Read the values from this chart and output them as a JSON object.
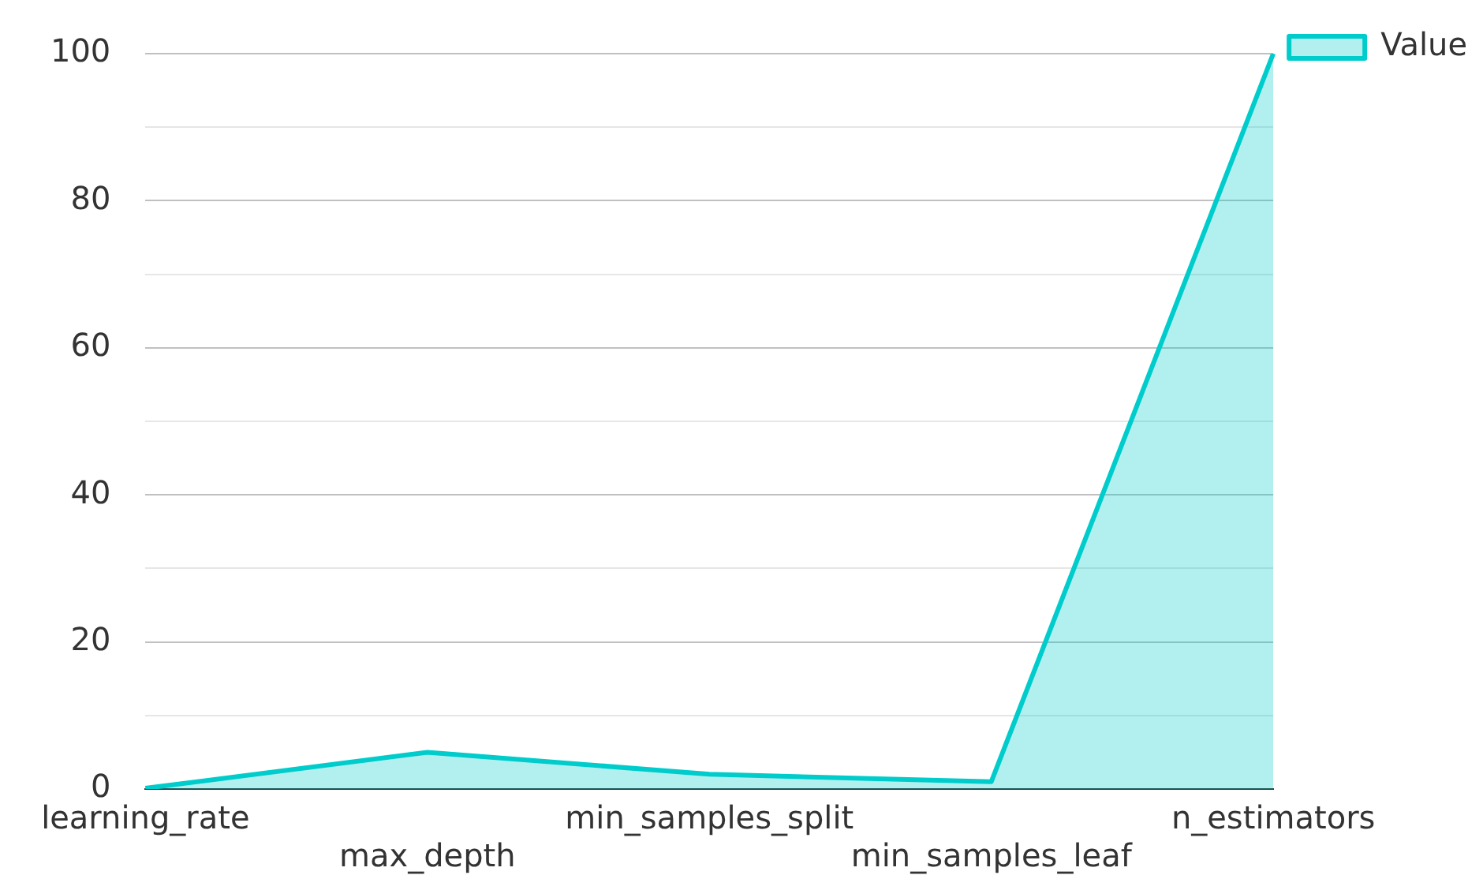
{
  "chart_data": {
    "type": "area",
    "categories": [
      "learning_rate",
      "max_depth",
      "min_samples_split",
      "min_samples_leaf",
      "n_estimators"
    ],
    "series": [
      {
        "name": "Value",
        "color": "#00cccc",
        "values": [
          0.1,
          5,
          2,
          1,
          100
        ]
      }
    ],
    "ylim": [
      0,
      100
    ],
    "yticks": [
      0,
      {
        "value": 10,
        "label": null
      },
      20,
      {
        "value": 30,
        "label": null
      },
      40,
      {
        "value": 50,
        "label": null
      },
      60,
      {
        "value": 70,
        "label": null
      },
      80,
      {
        "value": 90,
        "label": null
      },
      100
    ],
    "grid": "y",
    "legend": "top right"
  }
}
